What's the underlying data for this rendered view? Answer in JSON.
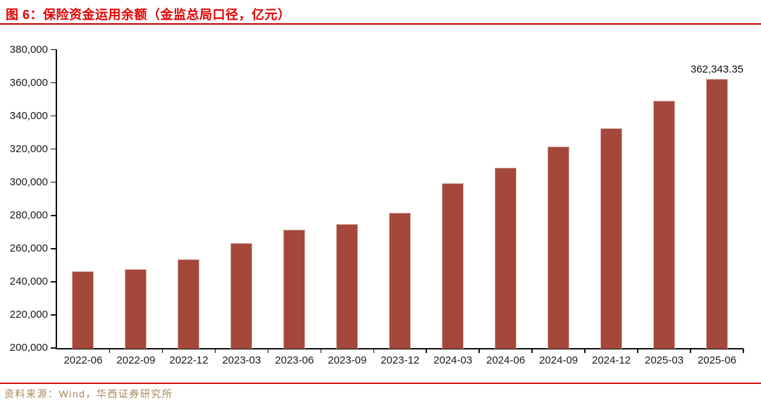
{
  "figure": {
    "title": "图 6：保险资金运用余额（金监总局口径，亿元）",
    "source": "资料来源：Wind，华西证券研究所"
  },
  "colors": {
    "title_red": "#E30000",
    "rule_red": "#C40000",
    "bar_fill": "#A3483A",
    "bar_edge": "#D6B0A5",
    "axis": "#111111",
    "tick_text": "#1a1a1a",
    "source_text": "#A8865A"
  },
  "chart_data": {
    "type": "bar",
    "title": "保险资金运用余额（金监总局口径，亿元）",
    "categories": [
      "2022-06",
      "2022-09",
      "2022-12",
      "2023-03",
      "2023-06",
      "2023-09",
      "2023-12",
      "2024-03",
      "2024-06",
      "2024-09",
      "2024-12",
      "2025-03",
      "2025-06"
    ],
    "values": [
      246500,
      247700,
      253500,
      263400,
      271500,
      275000,
      281600,
      299400,
      308700,
      321500,
      332600,
      349300,
      362343.35
    ],
    "xlabel": "",
    "ylabel": "",
    "ylim": [
      200000,
      380000
    ],
    "ytick_step": 20000,
    "ytick_labels": [
      "380,000",
      "360,000",
      "340,000",
      "320,000",
      "300,000",
      "280,000",
      "260,000",
      "240,000",
      "220,000",
      "200,000"
    ],
    "grid": false,
    "legend": "none",
    "annotation": {
      "category": "2025-06",
      "text": "362,343.35"
    }
  }
}
